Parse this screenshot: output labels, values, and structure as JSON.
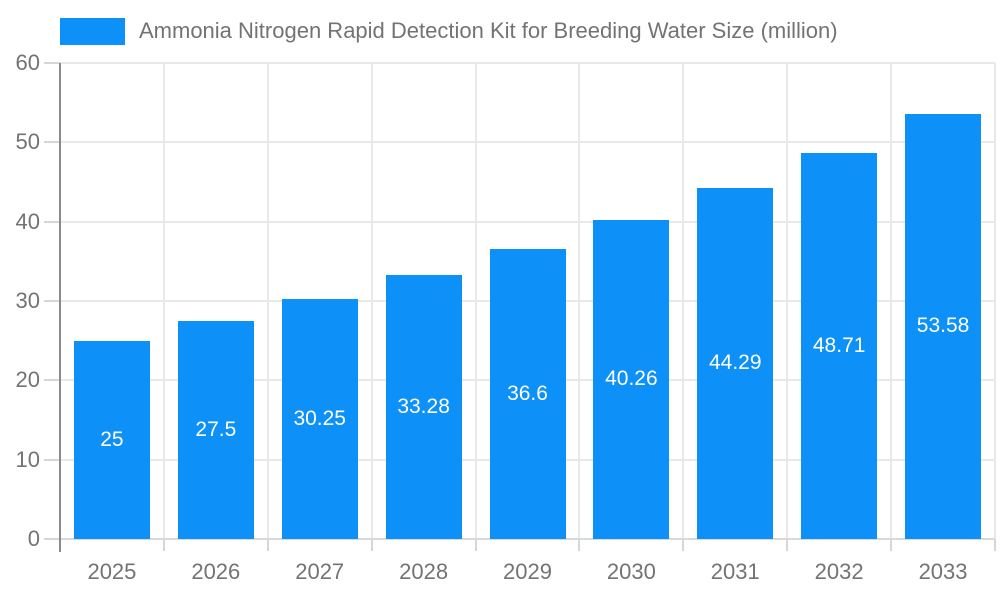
{
  "chart_data": {
    "type": "bar",
    "title": "Ammonia Nitrogen Rapid Detection Kit for Breeding Water Size (million)",
    "legend": [
      "Ammonia Nitrogen Rapid Detection Kit for Breeding Water Size (million)"
    ],
    "legend_position": "top-left",
    "categories": [
      "2025",
      "2026",
      "2027",
      "2028",
      "2029",
      "2030",
      "2031",
      "2032",
      "2033"
    ],
    "values": [
      25,
      27.5,
      30.25,
      33.28,
      36.6,
      40.26,
      44.29,
      48.71,
      53.58
    ],
    "value_labels": [
      "25",
      "27.5",
      "30.25",
      "33.28",
      "36.6",
      "40.26",
      "44.29",
      "48.71",
      "53.58"
    ],
    "xlabel": "",
    "ylabel": "",
    "ylim": [
      0,
      60
    ],
    "yticks": [
      0,
      10,
      20,
      30,
      40,
      50,
      60
    ],
    "grid": true,
    "bar_color": "#0d90f8",
    "bar_label_color": "#ffffff",
    "axis_text_color": "#737373",
    "axis_line_color": "#8a8a8a",
    "x_axis_line_color": "#d9d9d9",
    "gridline_color": "#e8e8e8",
    "tick_color": "#d6d6d6",
    "background_color": "#ffffff"
  }
}
